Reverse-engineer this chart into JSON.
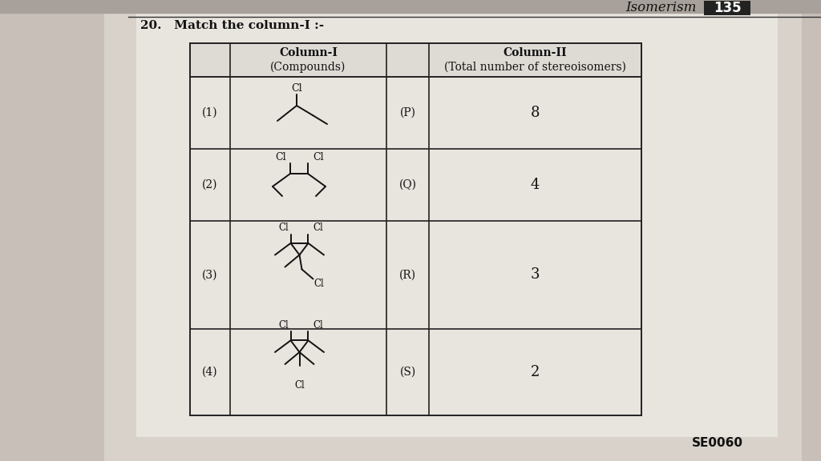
{
  "title": "20.   Match the column-I :-",
  "header_title": "Isomerism",
  "header_num": "135",
  "col1_header_line1": "Column-I",
  "col1_header_line2": "(Compounds)",
  "col2_header_line1": "Column-II",
  "col2_header_line2": "(Total number of stereoisomers)",
  "row_nums": [
    "(1)",
    "(2)",
    "(3)",
    "(4)"
  ],
  "row_letters": [
    "(P)",
    "(Q)",
    "(R)",
    "(S)"
  ],
  "row_values": [
    "8",
    "4",
    "3",
    "2"
  ],
  "footer": "SE0060",
  "page_bg": "#c8c0b8",
  "table_bg": "#e8e4de",
  "header_row_bg": "#dedad4",
  "border_color": "#222222",
  "text_color": "#111111",
  "top_bar_color": "#b8b0a8",
  "black_box_color": "#222222"
}
